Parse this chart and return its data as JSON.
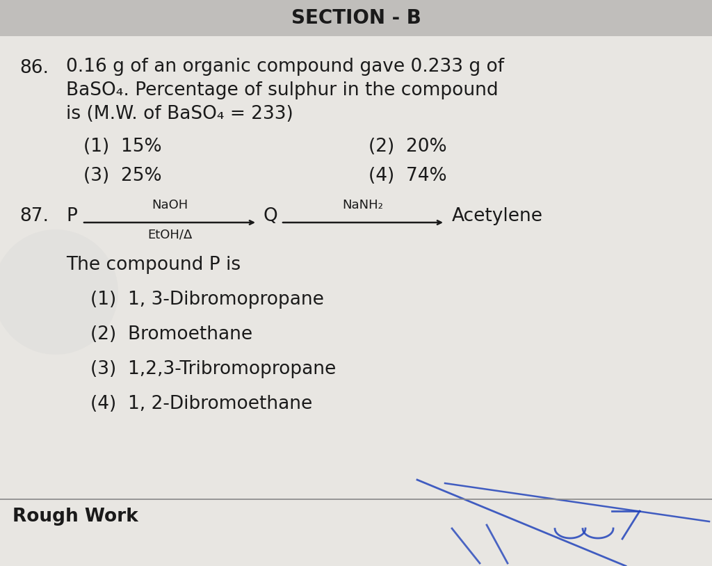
{
  "page_background": "#e8e6e2",
  "section_header": "SECTION - B",
  "section_header_bg": "#c0bebb",
  "section_header_color": "#1a1a1a",
  "q86_line1": "0.16 g of an organic compound gave 0.233 g of",
  "q86_line2": "BaSO₄. Percentage of sulphur in the compound",
  "q86_line3": "is (M.W. of BaSO₄ = 233)",
  "q86_opt1": "(1)  15%",
  "q86_opt2": "(2)  20%",
  "q86_opt3": "(3)  25%",
  "q86_opt4": "(4)  74%",
  "q87_above1": "NaOH",
  "q87_below1": "EtOH/Δ",
  "q87_above2": "NaNH₂",
  "q87_text": "The compound P is",
  "q87_opt1": "(1)  1, 3-Dibromopropane",
  "q87_opt2": "(2)  Bromoethane",
  "q87_opt3": "(3)  1,2,3-Tribromopropane",
  "q87_opt4": "(4)  1, 2-Dibromoethane",
  "rough_work": "Rough Work",
  "text_color": "#1a1a1a",
  "fig_width": 10.24,
  "fig_height": 8.14,
  "dpi": 100
}
